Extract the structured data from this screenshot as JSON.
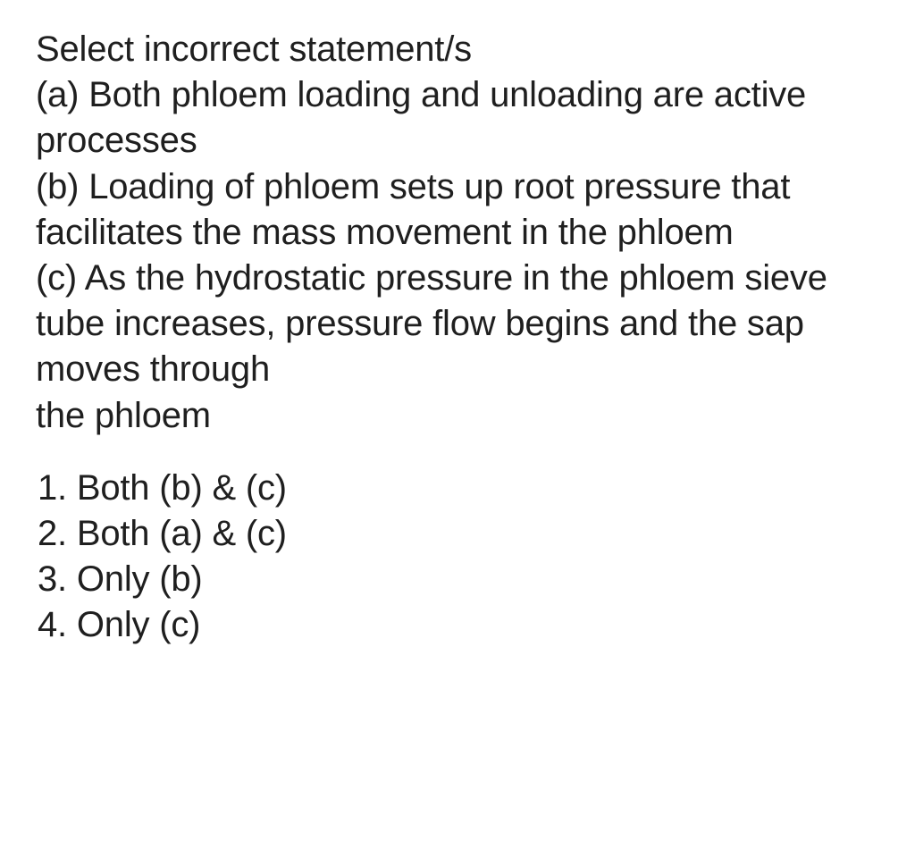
{
  "colors": {
    "background": "#ffffff",
    "text": "#1f1f1f"
  },
  "typography": {
    "font_family": "Arial, Helvetica, sans-serif",
    "font_size_pt": 30,
    "line_height": 1.28
  },
  "question": {
    "prompt": "Select incorrect statement/s",
    "statements": {
      "a": "(a) Both phloem loading and unloading are active processes",
      "b": "(b) Loading of phloem sets up root pressure that facilitates the mass movement in the phloem",
      "c": "(c) As the hydrostatic pressure in the phloem sieve tube increases, pressure flow begins and the sap moves through",
      "c_tail": "the phloem"
    },
    "answers": [
      "1. Both (b) & (c)",
      "2. Both (a) & (c)",
      "3. Only (b)",
      "4. Only (c)"
    ]
  }
}
